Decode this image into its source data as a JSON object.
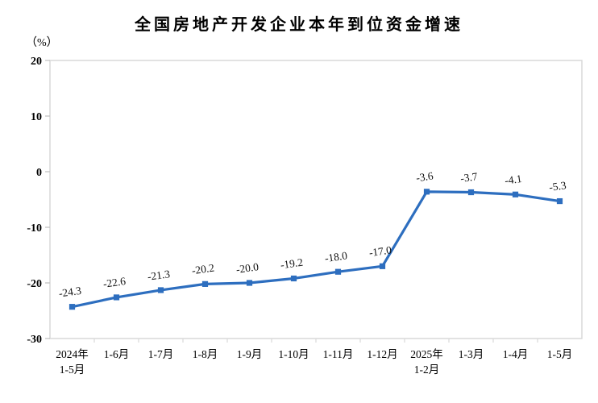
{
  "chart_data": {
    "type": "line",
    "title": "全国房地产开发企业本年到位资金增速",
    "unit_label": "（%）",
    "categories": [
      [
        "2024年",
        "1-5月"
      ],
      [
        "1-6月"
      ],
      [
        "1-7月"
      ],
      [
        "1-8月"
      ],
      [
        "1-9月"
      ],
      [
        "1-10月"
      ],
      [
        "1-11月"
      ],
      [
        "1-12月"
      ],
      [
        "2025年",
        "1-2月"
      ],
      [
        "1-3月"
      ],
      [
        "1-4月"
      ],
      [
        "1-5月"
      ]
    ],
    "values": [
      -24.3,
      -22.6,
      -21.3,
      -20.2,
      -20.0,
      -19.2,
      -18.0,
      -17.0,
      -3.6,
      -3.7,
      -4.1,
      -5.3
    ],
    "data_labels": [
      "-24.3",
      "-22.6",
      "-21.3",
      "-20.2",
      "-20.0",
      "-19.2",
      "-18.0",
      "-17.0",
      "-3.6",
      "-3.7",
      "-4.1",
      "-5.3"
    ],
    "y_ticks": [
      20,
      10,
      0,
      -10,
      -20,
      -30
    ],
    "ylim": [
      -30,
      20
    ],
    "xlabel": "",
    "ylabel": "",
    "grid": false,
    "legend_position": "none",
    "line_color": "#2D6EBF",
    "marker": "square",
    "marker_color": "#2D6EBF",
    "plot_border_color": "#D9D9D9",
    "tick_color": "#BFBFBF",
    "text_color": "#000000"
  }
}
